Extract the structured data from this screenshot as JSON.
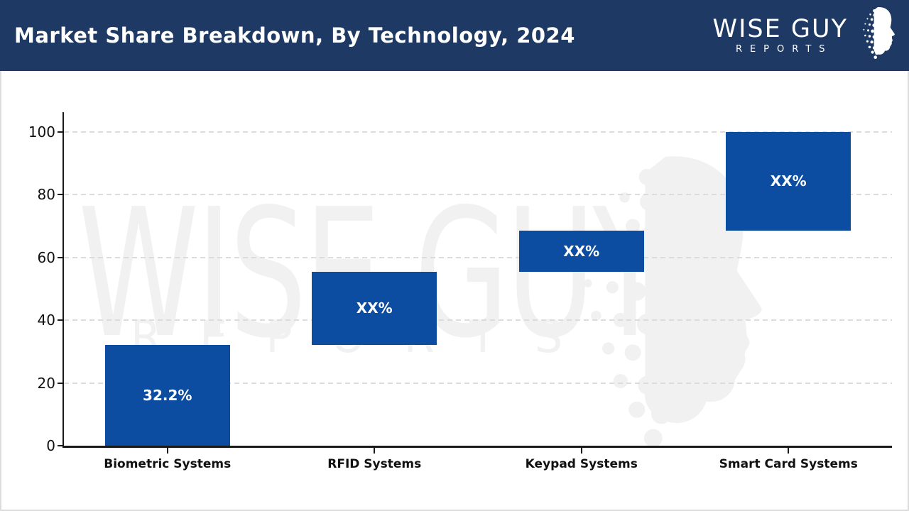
{
  "header": {
    "title": "Market Share Breakdown, By Technology, 2024",
    "logo": {
      "line1": "WISE GUY",
      "line2": "REPORTS"
    }
  },
  "watermark": {
    "line1": "WISE GUY",
    "line2": "REPORTS"
  },
  "colors": {
    "header_bg": "#1e3a64",
    "header_text": "#ffffff",
    "bar": "#0c4da2",
    "bar_label": "#ffffff",
    "grid": "#dcdcdc",
    "axis": "#1a1a1a",
    "tick_text": "#111111",
    "watermark": "#f1f1f1",
    "border": "#dcdcdc"
  },
  "chart_data": {
    "type": "bar",
    "subtype": "waterfall",
    "title": "Market Share Breakdown, By Technology, 2024",
    "categories": [
      "Biometric Systems",
      "RFID Systems",
      "Keypad Systems",
      "Smart Card Systems"
    ],
    "segments": [
      {
        "start": 0,
        "end": 32.2,
        "value": 32.2,
        "label": "32.2%"
      },
      {
        "start": 32.2,
        "end": 55.4,
        "value": 23.2,
        "label": "XX%"
      },
      {
        "start": 55.4,
        "end": 68.6,
        "value": 13.2,
        "label": "XX%"
      },
      {
        "start": 68.6,
        "end": 100,
        "value": 31.4,
        "label": "XX%"
      }
    ],
    "yticks": [
      0,
      20,
      40,
      60,
      80,
      100
    ],
    "ylim": [
      0,
      105
    ],
    "xlabel": "",
    "ylabel": "",
    "grid": "horizontal-dashed",
    "legend": "none"
  }
}
